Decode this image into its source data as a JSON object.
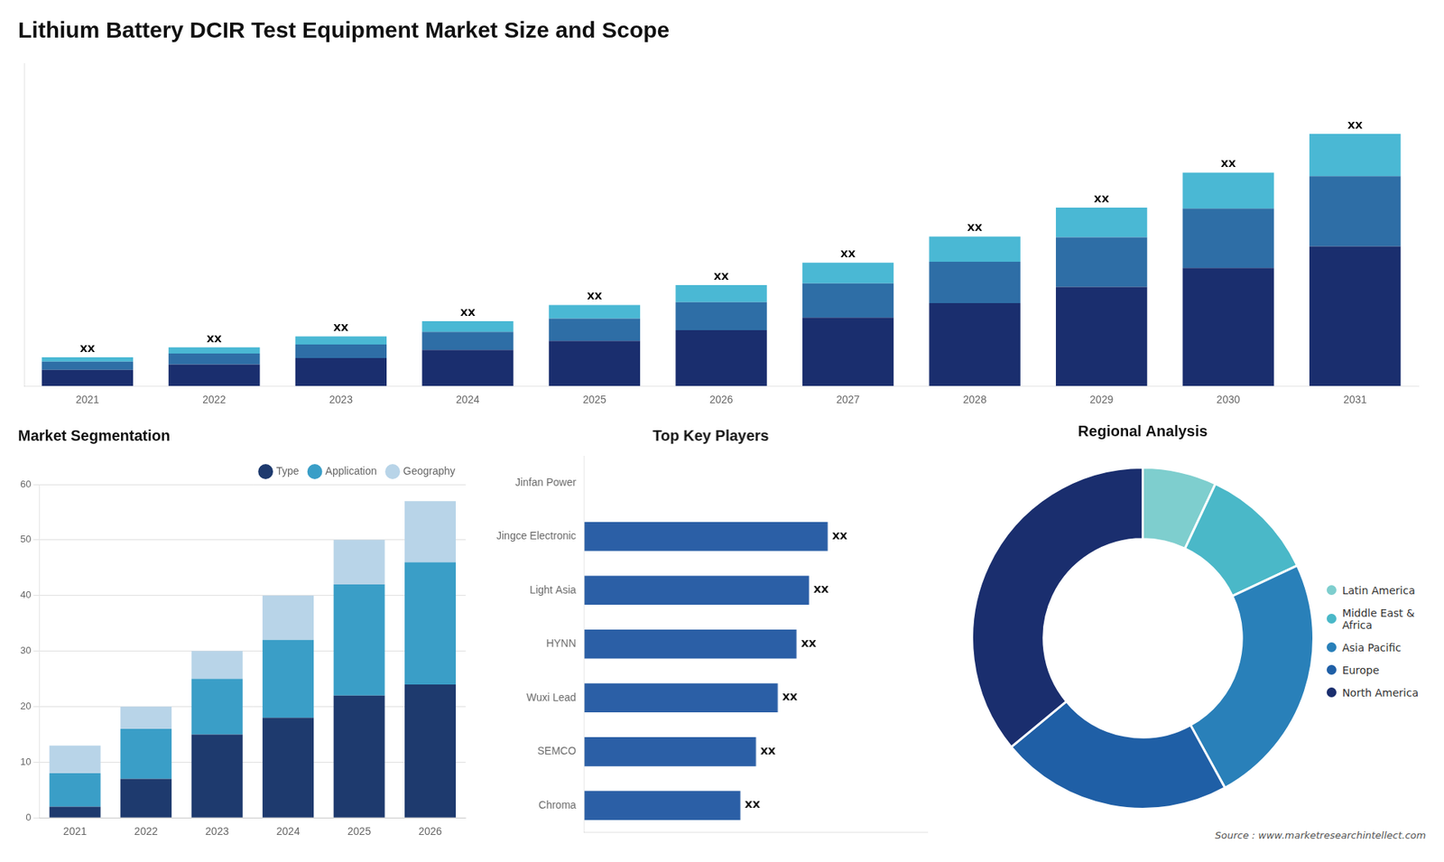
{
  "chart_data": [
    {
      "type": "bar",
      "title": "Lithium Battery DCIR Test Equipment Market Size and Scope",
      "categories": [
        "2021",
        "2022",
        "2023",
        "2024",
        "2025",
        "2026",
        "2027",
        "2028",
        "2029",
        "2030",
        "2031"
      ],
      "series": [
        {
          "color": "#1a2e6e",
          "values": [
            1.8,
            2.4,
            3.1,
            4.0,
            5.0,
            6.2,
            7.6,
            9.2,
            11.0,
            13.1,
            15.5
          ]
        },
        {
          "color": "#2e6ea6",
          "values": [
            0.9,
            1.2,
            1.5,
            2.0,
            2.5,
            3.1,
            3.8,
            4.6,
            5.5,
            6.6,
            7.8
          ]
        },
        {
          "color": "#4ab8d4",
          "values": [
            0.5,
            0.7,
            0.9,
            1.2,
            1.5,
            1.9,
            2.3,
            2.8,
            3.3,
            4.0,
            4.7
          ]
        }
      ],
      "stacked": true,
      "value_labels": [
        "XX",
        "XX",
        "XX",
        "XX",
        "XX",
        "XX",
        "XX",
        "XX",
        "XX",
        "XX",
        "XX"
      ],
      "ylim": [
        0,
        35.84
      ],
      "tick_labels": "x",
      "grid": false
    },
    {
      "type": "bar",
      "title": "Market Segmentation",
      "categories": [
        "2021",
        "2022",
        "2023",
        "2024",
        "2025",
        "2026"
      ],
      "series": [
        {
          "name": "Type",
          "color": "#1e3a6e",
          "values": [
            2,
            7,
            15,
            18,
            22,
            24
          ]
        },
        {
          "name": "Application",
          "color": "#3a9ec7",
          "values": [
            6,
            9,
            10,
            14,
            20,
            22
          ]
        },
        {
          "name": "Geography",
          "color": "#b8d4e8",
          "values": [
            5,
            4,
            5,
            8,
            8,
            11
          ]
        }
      ],
      "stacked": true,
      "ylim": [
        0,
        60
      ],
      "yticks": [
        0,
        10,
        20,
        30,
        40,
        50,
        60
      ],
      "grid": true,
      "legend": "upper right"
    },
    {
      "type": "bar",
      "orientation": "horizontal",
      "title": "Top Key Players",
      "categories": [
        "Jinfan Power",
        "Jingce Electronic",
        "Light Asia",
        "HYNN",
        "Wuxi Lead",
        "SEMCO",
        "Chroma"
      ],
      "values": [
        0,
        7.8,
        7.2,
        6.8,
        6.2,
        5.5,
        5.0
      ],
      "value_labels": [
        null,
        "XX",
        "XX",
        "XX",
        "XX",
        "XX",
        "XX"
      ],
      "color": "#2b5fa6",
      "xlim": [
        0,
        11
      ],
      "tick_labels": "y",
      "grid": false
    },
    {
      "type": "doughnut",
      "title": "Regional Analysis",
      "categories": [
        "Latin America",
        "Middle East &\nAfrica",
        "Asia Pacific",
        "Europe",
        "North America"
      ],
      "values": [
        7,
        11,
        24,
        22,
        36
      ],
      "colors": [
        "#7ecece",
        "#4ab8c8",
        "#2980b9",
        "#1f5fa6",
        "#1a2e6e"
      ],
      "legend": "right",
      "annotations": [
        "Source : www.marketresearchintellect.com"
      ]
    }
  ]
}
